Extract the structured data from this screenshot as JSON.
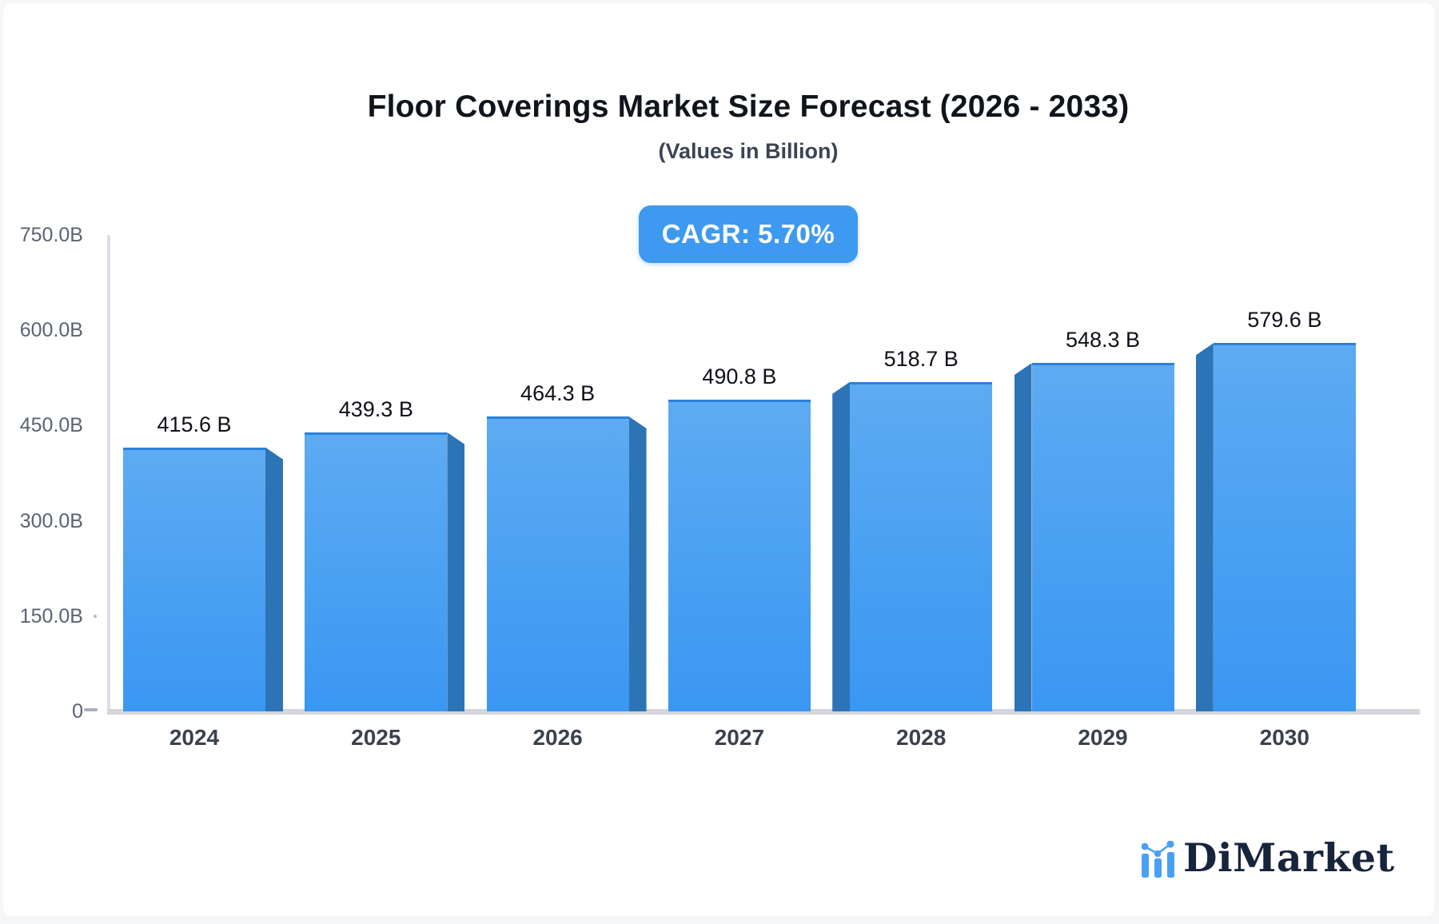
{
  "header": {
    "title": "Floor Coverings Market Size Forecast (2026 - 2033)",
    "subtitle": "(Values in Billion)",
    "cagr_badge": "CAGR: 5.70%"
  },
  "chart_data": {
    "type": "bar",
    "title": "Floor Coverings Market Size Forecast (2026 - 2033)",
    "subtitle": "(Values in Billion)",
    "annotation": "CAGR: 5.70%",
    "categories": [
      "2024",
      "2025",
      "2026",
      "2027",
      "2028",
      "2029",
      "2030"
    ],
    "values": [
      415.6,
      439.3,
      464.3,
      490.8,
      518.7,
      548.3,
      579.6
    ],
    "bar_labels": [
      "415.6 B",
      "439.3 B",
      "464.3 B",
      "490.8 B",
      "518.7 B",
      "548.3 B",
      "579.6 B"
    ],
    "xlabel": "",
    "ylabel": "",
    "ylim": [
      0,
      750
    ],
    "y_ticks": [
      {
        "value": 750,
        "label": "750.0B"
      },
      {
        "value": 600,
        "label": "600.0B"
      },
      {
        "value": 450,
        "label": "450.0B"
      },
      {
        "value": 300,
        "label": "300.0B"
      },
      {
        "value": 150,
        "label": "150.0B"
      },
      {
        "value": 0,
        "label": "0"
      }
    ],
    "grid": false,
    "legend": false,
    "bar_style": "3d-perspective-blue"
  },
  "branding": {
    "logo_text": "DiMarket",
    "logo_icon": "mini-bar-line-chart-icon"
  },
  "colors": {
    "page_bg": "#f5f6f8",
    "card_bg": "#ffffff",
    "bar_face_top": "#5dabf2",
    "bar_face_bottom": "#3a97f2",
    "bar_side": "#2d74b6",
    "bar_top_edge": "#2b80dd",
    "badge_bg": "#3e9af0",
    "badge_text": "#ffffff",
    "axis_line": "#dcdfe4",
    "baseline": "#d3d6db",
    "y_label_text": "#5a6472",
    "x_label_text": "#3a424e",
    "value_label_text": "#0d1117",
    "logo_text_color": "#16243c",
    "logo_icon_color": "#4aa0f6"
  }
}
